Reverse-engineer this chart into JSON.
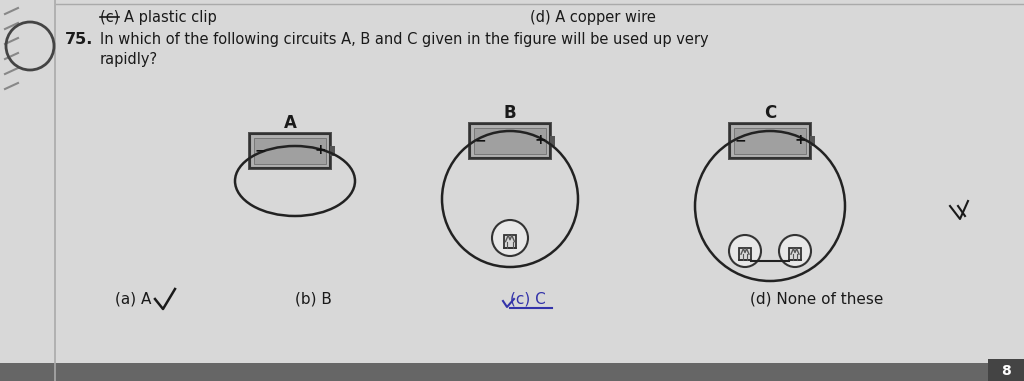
{
  "bg_color": "#d8d8d8",
  "text_color": "#1a1a1a",
  "top_left_text": "(c) A plastic clip",
  "top_right_text": "(d) A copper wire",
  "q_number": "75.",
  "question_line1": "In which of the following circuits A, B and C given in the figure will be used up very",
  "question_line2": "rapidly?",
  "circuit_labels": [
    "A",
    "B",
    "C"
  ],
  "answer_options": [
    "(a) A",
    "(b) B",
    "(c) C",
    "(d) None of these"
  ],
  "page_number": "8",
  "battery_fill": "#b0b0b0",
  "battery_inner": "#a0a0a0",
  "battery_border": "#222222",
  "wire_color": "#222222",
  "bulb_fill": "#e0e0e0",
  "bulb_base_fill": "#d0d0d0"
}
